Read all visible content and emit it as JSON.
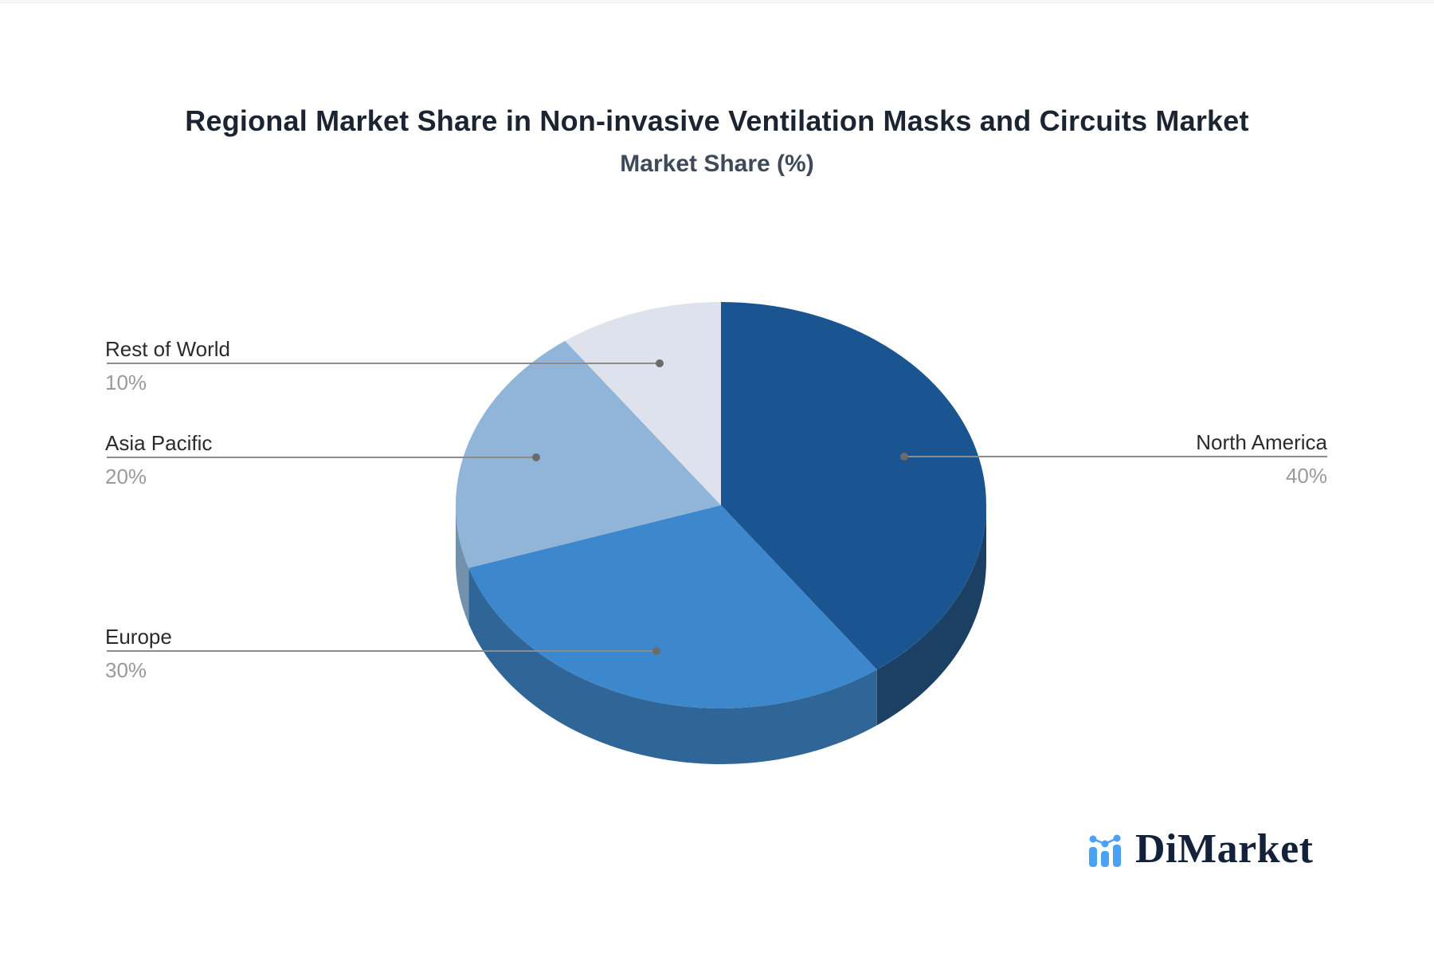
{
  "page": {
    "title": "Regional Market Share in Non-invasive Ventilation Masks and Circuits Market",
    "subtitle": "Market Share (%)",
    "background_color": "#FFFFFF",
    "top_bar_color": "#F5F7FA"
  },
  "chart_data": {
    "type": "pie",
    "title": "Regional Market Share in Non-invasive Ventilation Masks and Circuits Market",
    "subtitle": "Market Share (%)",
    "unit": "%",
    "effect": "3d-extruded",
    "start_angle_deg": 0,
    "direction": "clockwise",
    "categories": [
      "North America",
      "Europe",
      "Asia Pacific",
      "Rest of World"
    ],
    "values": [
      40,
      30,
      20,
      10
    ],
    "slices": [
      {
        "label": "North America",
        "value": 40,
        "display": "40%",
        "color": "#1A5591",
        "side_color": "#1B4064"
      },
      {
        "label": "Europe",
        "value": 30,
        "display": "30%",
        "color": "#3D87CC",
        "side_color": "#2F6597"
      },
      {
        "label": "Asia Pacific",
        "value": 20,
        "display": "20%",
        "color": "#91B5D9",
        "side_color": "#7390AC"
      },
      {
        "label": "Rest of World",
        "value": 10,
        "display": "10%",
        "color": "#DDE2EC",
        "side_color": "#C2CAD8"
      }
    ],
    "legend_position": "callout-labels",
    "leader_line_color": "#8C8C8C",
    "dot_color": "#6B6B6B",
    "label_text_color": "#2B2B2B",
    "value_text_color": "#9A9A9A"
  },
  "brand": {
    "name": "DiMarket",
    "text_color": "#14213A",
    "icon_color": "#4AA2F5",
    "icon": "mini-bar-line-chart"
  }
}
